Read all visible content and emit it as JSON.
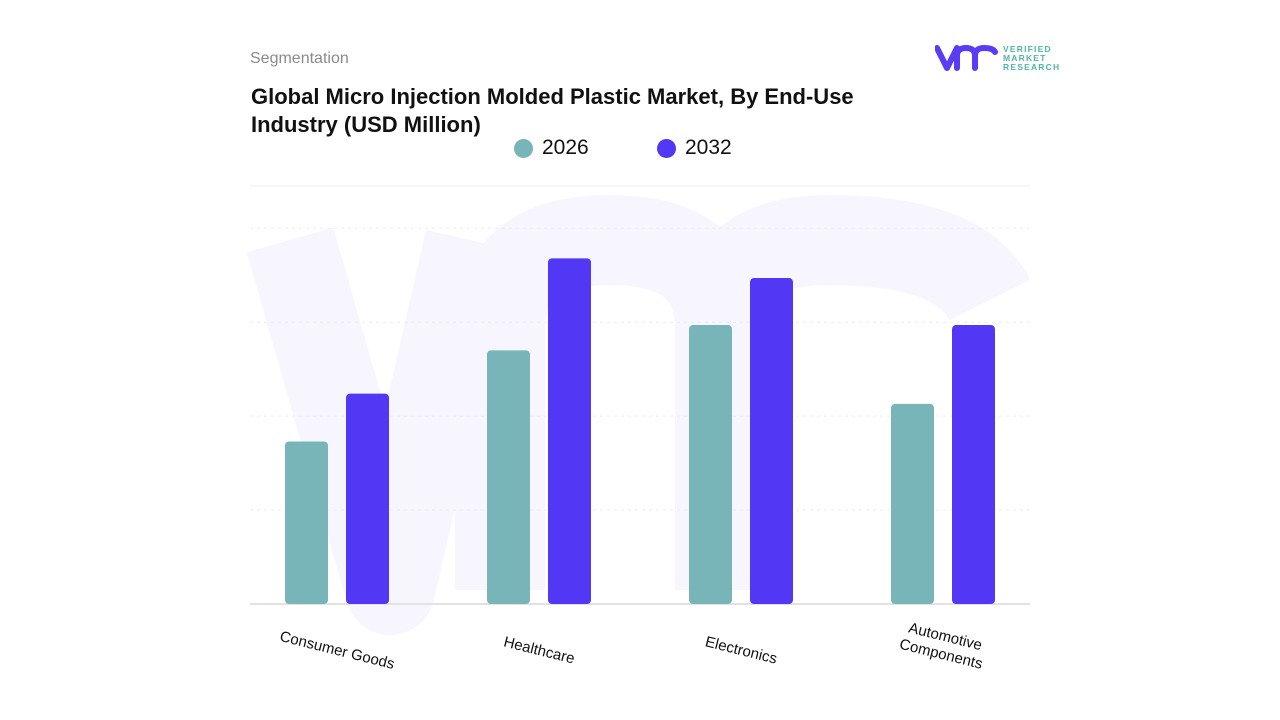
{
  "header": {
    "section": "Segmentation",
    "title": "Global Micro Injection Molded Plastic Market, By End-Use Industry (USD Million)"
  },
  "logo": {
    "mark": "vmr",
    "lines": [
      "VERIFIED",
      "MARKET",
      "RESEARCH"
    ],
    "color": "#5b3cf5",
    "text_color": "#4fb6a9"
  },
  "chart_data": {
    "type": "bar",
    "title": "Global Micro Injection Molded Plastic Market, By End-Use Industry (USD Million)",
    "categories": [
      "Consumer Goods",
      "Healthcare",
      "Electronics",
      "Automotive Components"
    ],
    "series": [
      {
        "name": "2026",
        "color": "#78b5b8",
        "values": [
          1.73,
          2.7,
          2.97,
          2.13
        ]
      },
      {
        "name": "2032",
        "color": "#5238f5",
        "values": [
          2.24,
          3.68,
          3.47,
          2.97
        ]
      }
    ],
    "xlabel": "",
    "ylabel": "",
    "ylim": [
      0,
      4.45
    ],
    "grid": true,
    "y_tick_labels_shown": false,
    "legend_position": "top"
  }
}
